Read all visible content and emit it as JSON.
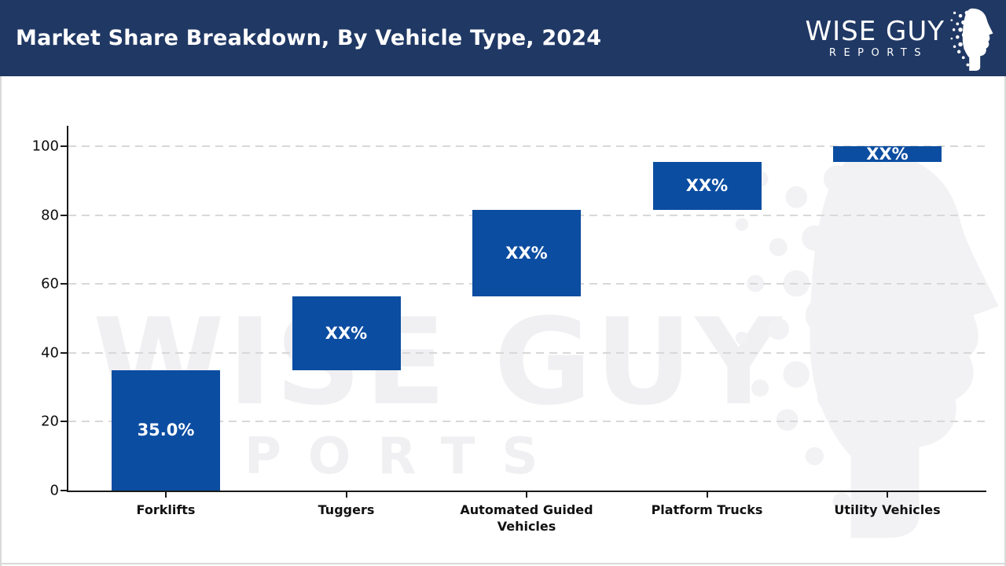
{
  "header": {
    "title": "Market Share Breakdown, By Vehicle Type, 2024",
    "bg_color": "#203864",
    "logo": {
      "line1": "WISE GUY",
      "line2": "REPORTS"
    }
  },
  "watermark": {
    "line1": "WISE GUY",
    "line2": "REPORTS"
  },
  "chart_data": {
    "type": "bar",
    "subtype": "waterfall",
    "title": "",
    "xlabel": "",
    "ylabel": "",
    "categories": [
      "Forklifts",
      "Tuggers",
      "Automated Guided Vehicles",
      "Platform Trucks",
      "Utility Vehicles"
    ],
    "segments": [
      {
        "category": "Forklifts",
        "start": 0,
        "end": 35,
        "label": "35.0%"
      },
      {
        "category": "Tuggers",
        "start": 35,
        "end": 56.5,
        "label": "XX%"
      },
      {
        "category": "Automated Guided Vehicles",
        "start": 56.5,
        "end": 81.5,
        "label": "XX%"
      },
      {
        "category": "Platform Trucks",
        "start": 81.5,
        "end": 95.5,
        "label": "XX%"
      },
      {
        "category": "Utility Vehicles",
        "start": 95.5,
        "end": 100,
        "label": "XX%"
      }
    ],
    "y_ticks": [
      0,
      20,
      40,
      60,
      80,
      100
    ],
    "ylim": [
      0,
      106
    ],
    "grid": "horizontal-dashed",
    "legend": "none",
    "bar_color": "#0b4da1",
    "bar_label_color": "#ffffff",
    "gridline_color": "#d8d8d8"
  }
}
